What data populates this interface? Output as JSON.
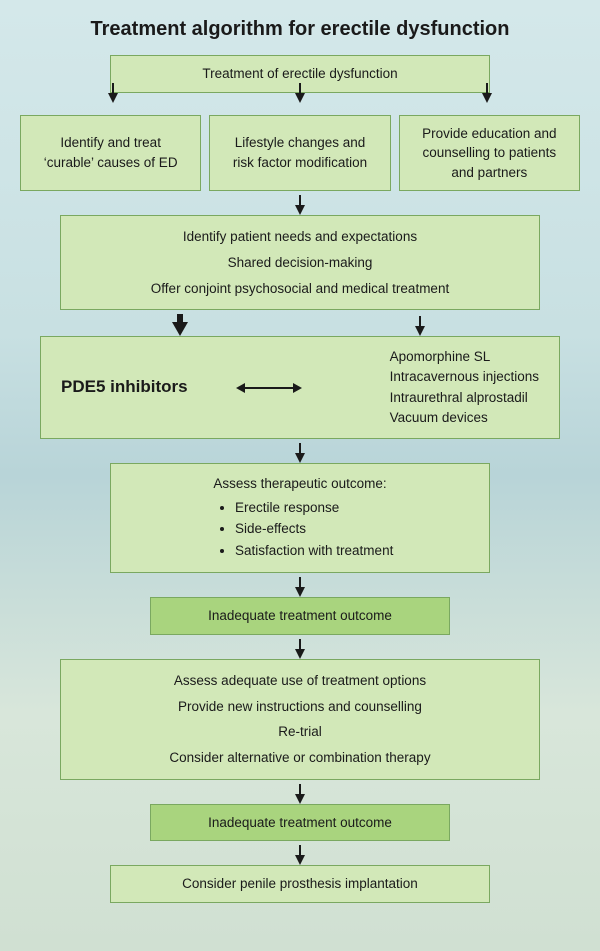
{
  "title": "Treatment algorithm for erectile dysfunction",
  "colors": {
    "box_light": "#d2e8b8",
    "box_dark": "#a9d47e",
    "box_border": "#7aa860",
    "arrow": "#1a1a1a",
    "text": "#1a1a1a"
  },
  "flow": {
    "start": "Treatment of erectile dysfunction",
    "tier1": [
      "Identify and treat ‘curable’ causes of ED",
      "Lifestyle changes and risk factor modification",
      "Provide education and counselling to patients and partners"
    ],
    "shared": {
      "l1": "Identify patient needs and expectations",
      "l2": "Shared decision-making",
      "l3": "Offer conjoint psychosocial and medical treatment"
    },
    "firstline": {
      "left": "PDE5 inhibitors",
      "right": {
        "l1": "Apomorphine SL",
        "l2": "Intracavernous injections",
        "l3": "Intraurethral alprostadil",
        "l4": "Vacuum devices"
      }
    },
    "assess": {
      "hdr": "Assess therapeutic outcome:",
      "b1": "Erectile response",
      "b2": "Side-effects",
      "b3": "Satisfaction with treatment"
    },
    "inadequate1": "Inadequate treatment outcome",
    "reassess": {
      "l1": "Assess adequate use of treatment options",
      "l2": "Provide new instructions and counselling",
      "l3": "Re-trial",
      "l4": "Consider alternative or combination therapy"
    },
    "inadequate2": "Inadequate treatment outcome",
    "final": "Consider penile prosthesis implantation"
  }
}
